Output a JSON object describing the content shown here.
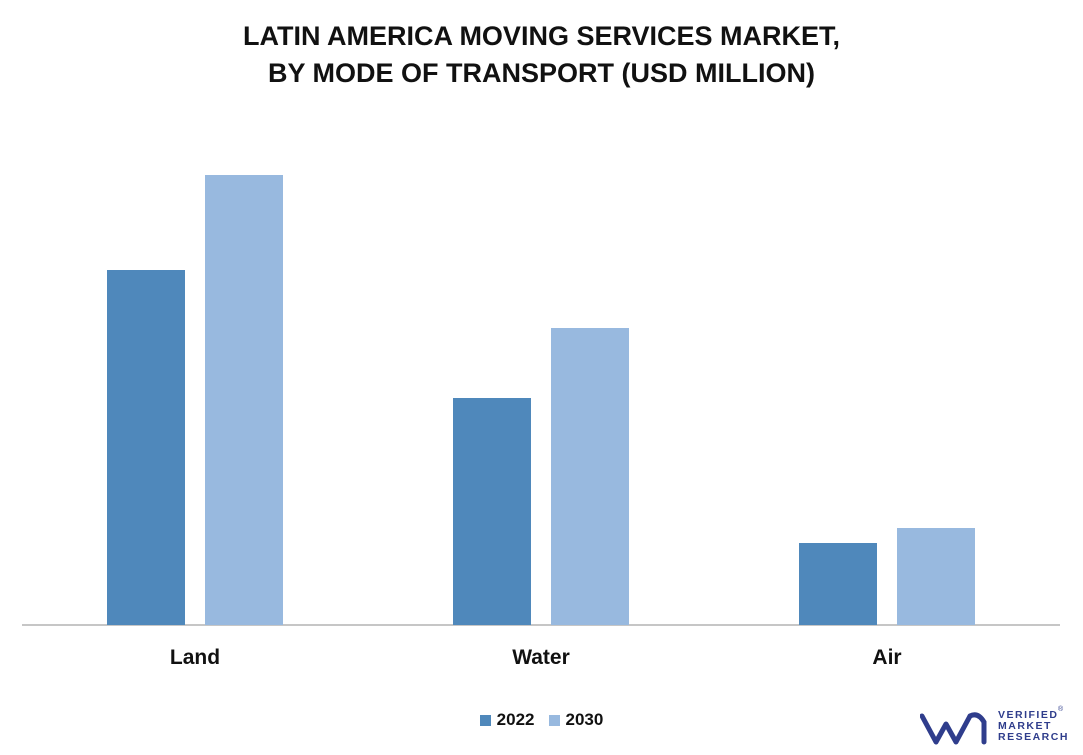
{
  "chart_data": {
    "type": "bar",
    "title": [
      "LATIN AMERICA MOVING SERVICES MARKET,",
      "BY MODE OF TRANSPORT (USD MILLION)"
    ],
    "categories": [
      "Land",
      "Water",
      "Air"
    ],
    "series": [
      {
        "name": "2022",
        "color": "#4f88bb",
        "values": [
          355,
          227,
          82
        ]
      },
      {
        "name": "2030",
        "color": "#98b9df",
        "values": [
          450,
          297,
          97
        ]
      }
    ],
    "xlabel": "",
    "ylabel": "",
    "ylim": [
      0,
      470
    ],
    "grid": false,
    "y_axis_visible": false,
    "legend_position": "bottom"
  },
  "logo": {
    "lines": [
      "VERIFIED",
      "MARKET",
      "RESEARCH"
    ],
    "mark": "vmr-logo-icon",
    "registered": "®",
    "brand_color": "#2f3d8c"
  }
}
